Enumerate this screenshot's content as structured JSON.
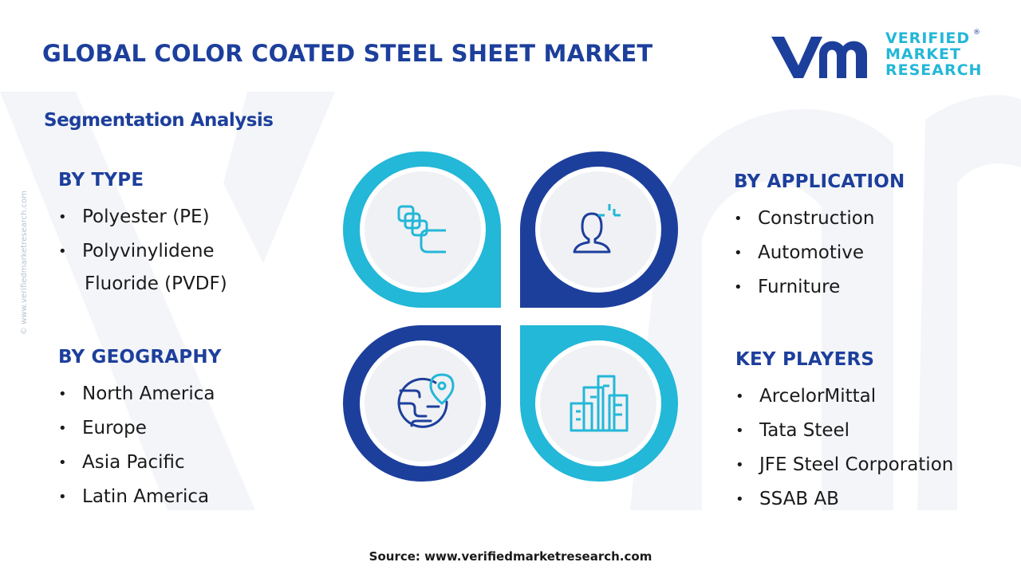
{
  "header": {
    "title": "GLOBAL COLOR COATED STEEL SHEET MARKET",
    "subtitle": "Segmentation Analysis"
  },
  "logo": {
    "line1": "VERIFIED",
    "line2": "MARKET",
    "line3": "RESEARCH",
    "registered": "®"
  },
  "colors": {
    "navy": "#1d3f9c",
    "cyan": "#23b7d8",
    "circle_fill": "#f0f1f4",
    "watermark": "#f1f3f8"
  },
  "segments": {
    "type": {
      "title": "BY TYPE",
      "items": [
        "Polyester (PE)",
        "Polyvinylidene",
        "Fluoride (PVDF)"
      ]
    },
    "geography": {
      "title": "BY GEOGRAPHY",
      "items": [
        "North America",
        "Europe",
        "Asia Pacific",
        "Latin America"
      ]
    },
    "application": {
      "title": "BY APPLICATION",
      "items": [
        "Construction",
        "Automotive",
        "Furniture"
      ]
    },
    "key_players": {
      "title": "KEY PLAYERS",
      "items": [
        "ArcelorMittal",
        "Tata Steel",
        "JFE Steel Corporation",
        "SSAB AB"
      ]
    }
  },
  "icons": {
    "top_left": "stacked-sheets-icon",
    "top_right": "user-analysis-icon",
    "bottom_left": "globe-location-icon",
    "bottom_right": "city-buildings-icon"
  },
  "footer": {
    "source": "Source: www.verifiedmarketresearch.com",
    "side_text": "© www.verifiedmarketresearch.com"
  }
}
